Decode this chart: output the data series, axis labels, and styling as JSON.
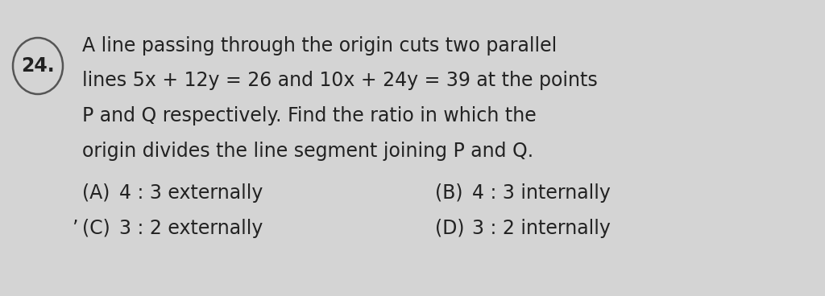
{
  "background_color": "#d4d4d4",
  "text_color": "#222222",
  "question_number": "24.",
  "question_lines": [
    "A line passing through the origin cuts two parallel",
    "lines 5x + 12y = 26 and 10x + 24y = 39 at the points",
    "P and Q respectively. Find the ratio in which the",
    "origin divides the line segment joining P and Q."
  ],
  "options_row1_left_label": "(A)",
  "options_row1_left_text": "4 : 3 externally",
  "options_row1_right_label": "(B)",
  "options_row1_right_text": "4 : 3 internally",
  "options_row2_left_prefix": "’",
  "options_row2_left_label": "(C)",
  "options_row2_left_text": "3 : 2 externally",
  "options_row2_right_label": "(D)",
  "options_row2_right_text": "3 : 2 internally",
  "font_size_main": 17,
  "font_size_options": 17,
  "fig_width": 10.24,
  "fig_height": 3.68,
  "dpi": 100
}
